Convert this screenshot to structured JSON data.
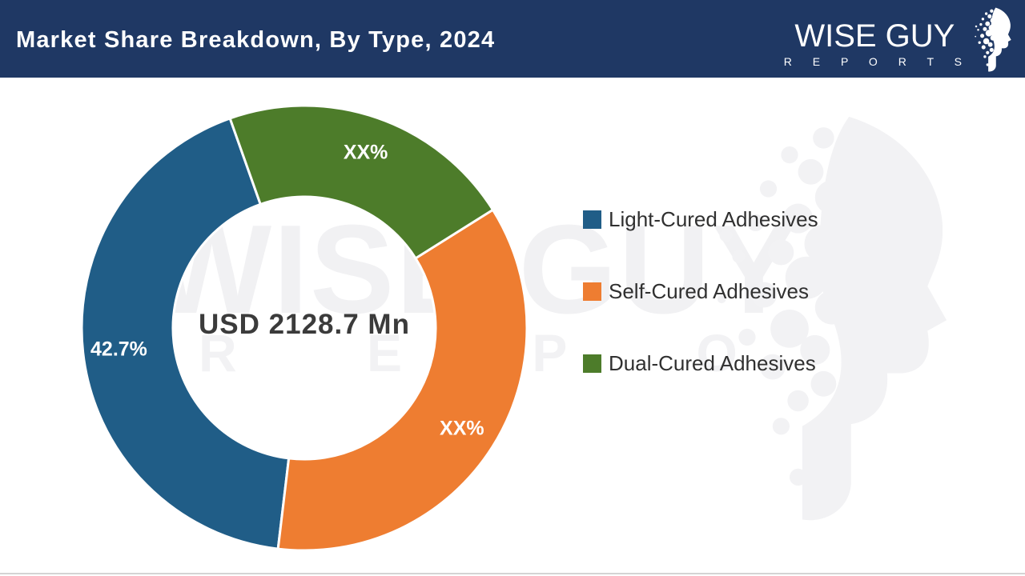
{
  "header": {
    "title": "Market Share Breakdown, By Type, 2024"
  },
  "logo": {
    "brand": "WISE GUY",
    "tagline": "R E P O R T S"
  },
  "watermark": {
    "line1": "WISE GUY",
    "line2": "R E P O R T S"
  },
  "chart_data": {
    "type": "pie",
    "subtype": "donut",
    "title": "Market Share Breakdown, By Type, 2024",
    "center_label": "USD 2128.7 Mn",
    "inner_radius_ratio": 0.59,
    "start_angle_deg": 109.5,
    "direction": "counterclockwise",
    "legend_position": "right",
    "segments": [
      {
        "name": "Light-Cured Adhesives",
        "label": "42.7%",
        "value_pct": 42.7,
        "color": "#205d87"
      },
      {
        "name": "Self-Cured Adhesives",
        "label": "XX%",
        "value_pct": 35.8,
        "color": "#ee7d31"
      },
      {
        "name": "Dual-Cured Adhesives",
        "label": "XX%",
        "value_pct": 21.5,
        "color": "#4d7c2a"
      }
    ]
  }
}
